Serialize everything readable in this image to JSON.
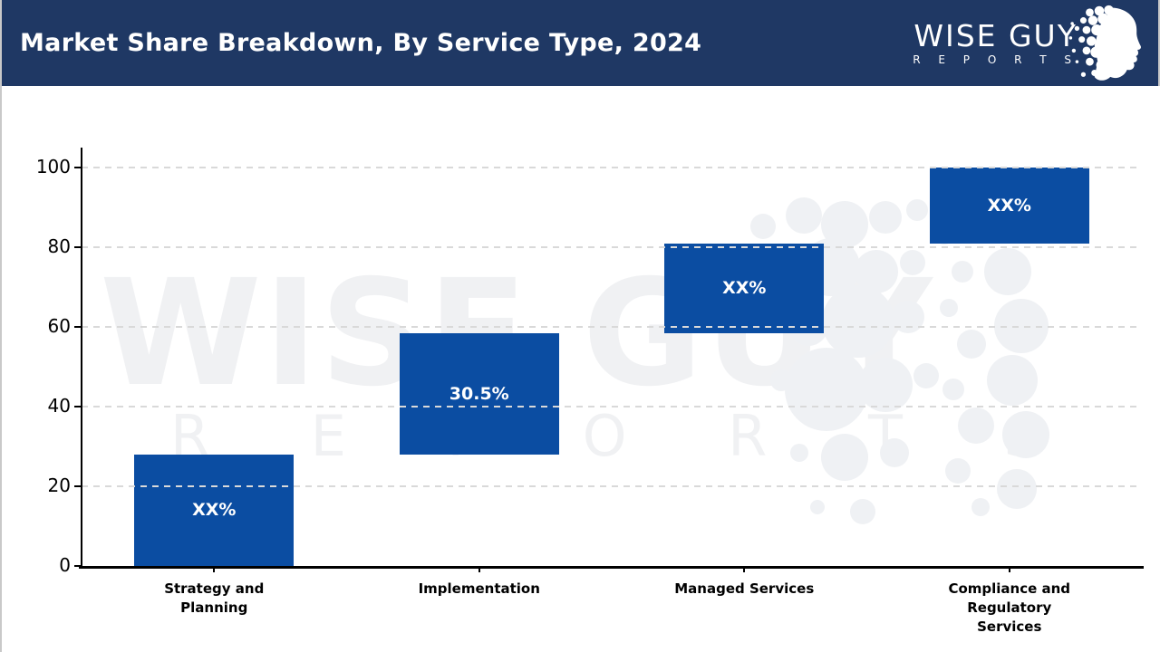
{
  "header": {
    "title": "Market Share Breakdown, By Service Type, 2024",
    "bg_color": "#1f3864",
    "logo": {
      "wordmark": "WISE GUY",
      "subtext": "R E P O R T S"
    }
  },
  "watermark": {
    "wordmark": "WISE GUY",
    "subtext": "R E P O R T S"
  },
  "chart_data": {
    "type": "bar",
    "subtype": "floating-waterfall",
    "title": "Market Share Breakdown, By Service Type, 2024",
    "categories": [
      "Strategy and Planning",
      "Implementation",
      "Managed Services",
      "Compliance and Regulatory Services"
    ],
    "category_label_lines": [
      [
        "Strategy and",
        "Planning"
      ],
      [
        "Implementation"
      ],
      [
        "Managed Services"
      ],
      [
        "Compliance and",
        "Regulatory",
        "Services"
      ]
    ],
    "segments": [
      {
        "category": "Strategy and Planning",
        "start": 0,
        "end": 28,
        "label": "XX%"
      },
      {
        "category": "Implementation",
        "start": 28,
        "end": 58.5,
        "label": "30.5%",
        "value": 30.5
      },
      {
        "category": "Managed Services",
        "start": 58.5,
        "end": 81,
        "label": "XX%"
      },
      {
        "category": "Compliance and Regulatory Services",
        "start": 81,
        "end": 100,
        "label": "XX%"
      }
    ],
    "xlabel": "",
    "ylabel": "",
    "ylim": [
      0,
      100
    ],
    "yticks": [
      0,
      20,
      40,
      60,
      80,
      100
    ],
    "grid": true,
    "grid_style": "dashed",
    "grid_color": "#d9d9d9",
    "axis_color": "#000000",
    "bar_color": "#0b4da2",
    "bar_label_color": "#ffffff",
    "legend": false
  }
}
